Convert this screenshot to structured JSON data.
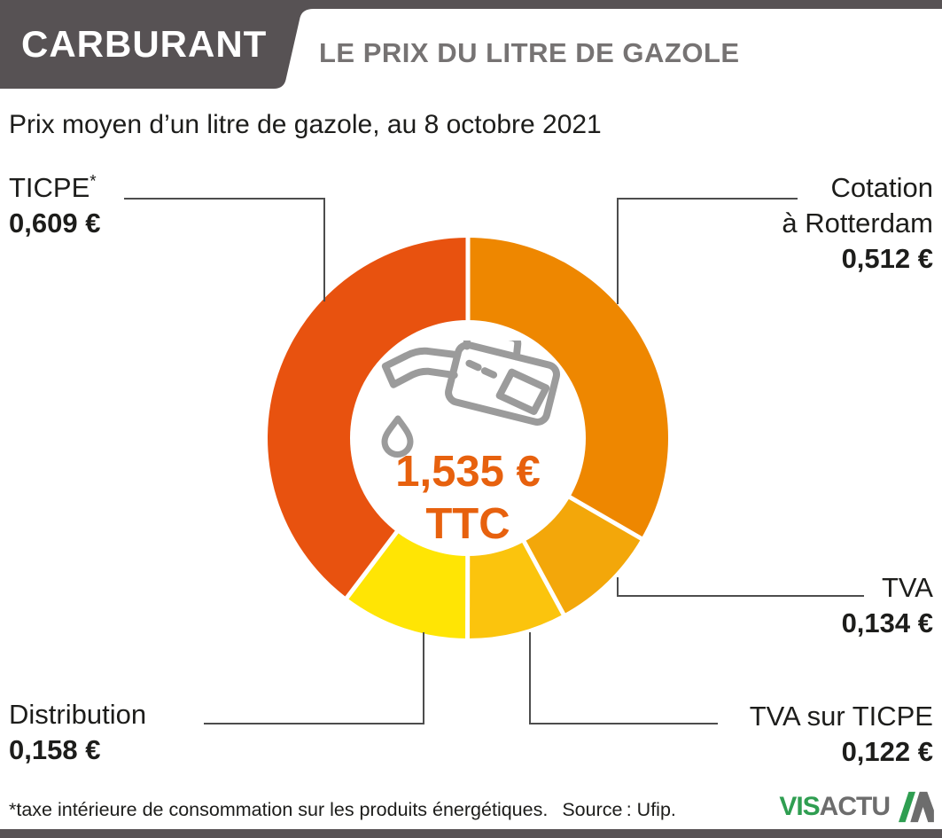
{
  "header": {
    "kicker": "CARBURANT",
    "title": "LE PRIX DU LITRE DE GAZOLE"
  },
  "subtitle": "Prix moyen d’un litre de gazole, au 8 octobre 2021",
  "chart_data": {
    "type": "pie",
    "variant": "donut",
    "title": "Le prix du litre de gazole",
    "date": "8 octobre 2021",
    "unit": "€ par litre",
    "total_value": 1.535,
    "center_label": {
      "value": "1,535 €",
      "suffix": "TTC"
    },
    "start_angle_deg": 0,
    "direction": "clockwise",
    "segments": [
      {
        "label": "Cotation à Rotterdam",
        "value": 0.512,
        "display": "0,512 €",
        "color": "#EE8700"
      },
      {
        "label": "TVA",
        "value": 0.134,
        "display": "0,134 €",
        "color": "#F3A70A"
      },
      {
        "label": "TVA sur TICPE",
        "value": 0.122,
        "display": "0,122 €",
        "color": "#FBC40D"
      },
      {
        "label": "Distribution",
        "value": 0.158,
        "display": "0,158 €",
        "color": "#FFE504"
      },
      {
        "label": "TICPE",
        "value": 0.609,
        "display": "0,609 €",
        "color": "#E8520F"
      }
    ]
  },
  "callouts": {
    "ticpe_name": "TICPE",
    "ticpe_marker": "*",
    "cotation_line1": "Cotation",
    "cotation_line2": "à Rotterdam",
    "tva_name": "TVA",
    "tva_ticpe_name": "TVA sur TICPE",
    "distribution_name": "Distribution"
  },
  "colors": {
    "banner": "#575254",
    "accent_text": "#E7610E",
    "leader_line": "#4d4d4d",
    "icon_gray": "#9B9B9B",
    "brand_green": "#2F9E51",
    "brand_gray": "#6d6d6d"
  },
  "footer": {
    "note": "*taxe intérieure de consommation sur les produits énergétiques.",
    "source": "Source : Ufip.",
    "brand_green": "VIS",
    "brand_gray": "ACTU"
  }
}
